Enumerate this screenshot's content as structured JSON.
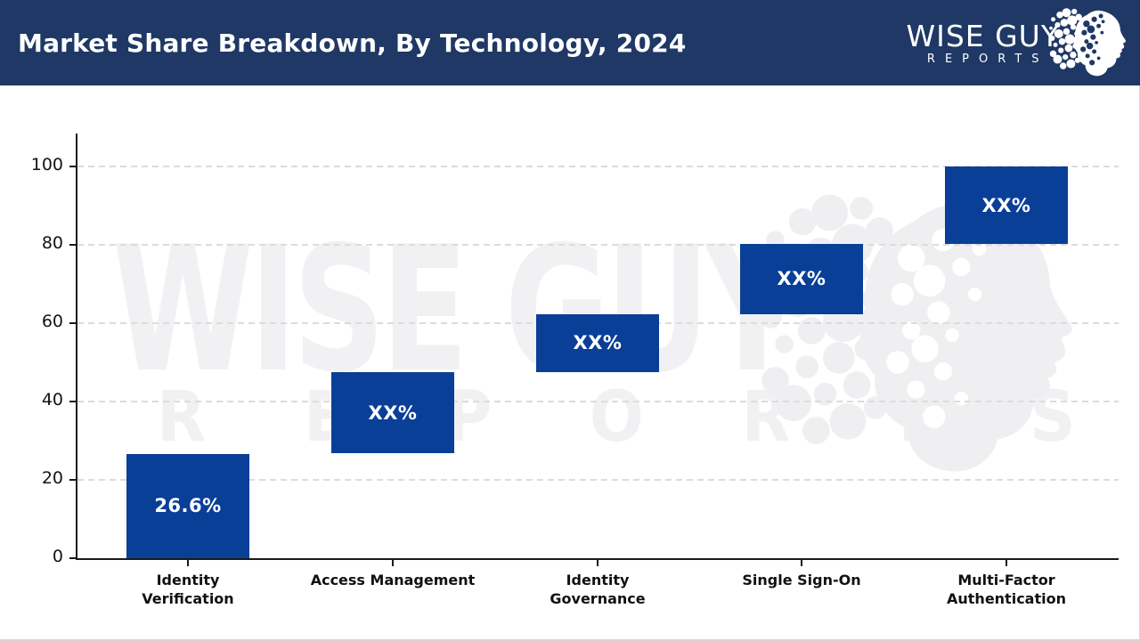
{
  "header": {
    "title": "Market Share Breakdown, By Technology, 2024",
    "logo": {
      "line1": "WISE GUY",
      "line2": "REPORTS"
    }
  },
  "watermark": {
    "line1": "WISE GUY",
    "line2": "R E P O R T S"
  },
  "colors": {
    "header_bg": "#1f3865",
    "bar": "#0a3f98",
    "grid": "#dcdcdc",
    "axis": "#1a1a1a",
    "watermark": "#f1f1f4"
  },
  "chart_data": {
    "type": "bar",
    "subtype": "waterfall",
    "title": "Market Share Breakdown, By Technology, 2024",
    "xlabel": "",
    "ylabel": "",
    "ylim": [
      0,
      100
    ],
    "yticks": [
      0,
      20,
      40,
      60,
      80,
      100
    ],
    "grid": "horizontal-dashed",
    "legend": "none",
    "bar_color": "#0a3f98",
    "categories": [
      "Identity Verification",
      "Access Management",
      "Identity Governance",
      "Single Sign-On",
      "Multi-Factor Authentication"
    ],
    "bars": [
      {
        "category_lines": [
          "Identity",
          "Verification"
        ],
        "start": 0,
        "end": 26.6,
        "label": "26.6%"
      },
      {
        "category_lines": [
          "Access Management"
        ],
        "start": 26.8,
        "end": 47.5,
        "label": "XX%"
      },
      {
        "category_lines": [
          "Identity",
          "Governance"
        ],
        "start": 47.5,
        "end": 62.3,
        "label": "XX%"
      },
      {
        "category_lines": [
          "Single Sign-On"
        ],
        "start": 62.3,
        "end": 80.2,
        "label": "XX%"
      },
      {
        "category_lines": [
          "Multi-Factor",
          "Authentication"
        ],
        "start": 80.2,
        "end": 100,
        "label": "XX%"
      }
    ]
  }
}
